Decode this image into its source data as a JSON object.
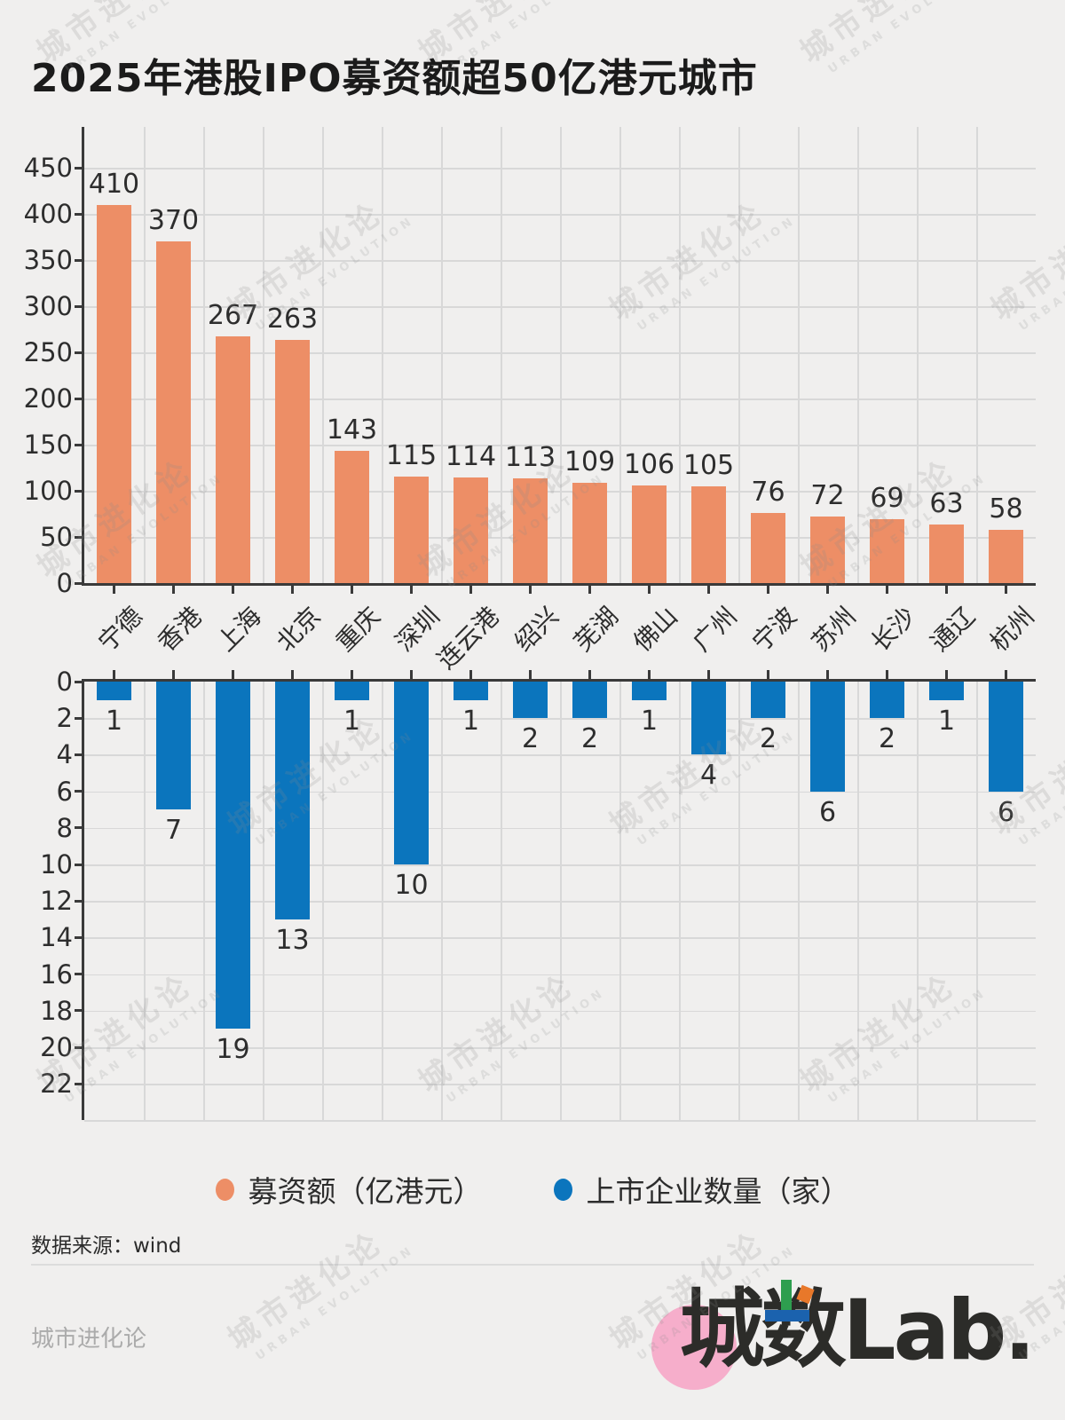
{
  "title": "2025年港股IPO募资额超50亿港元城市",
  "watermark": {
    "cn": "城市进化论",
    "en": "URBAN EVOLUTION"
  },
  "chart_data": [
    {
      "type": "bar",
      "title": "募资额（亿港元）",
      "categories": [
        "宁德",
        "香港",
        "上海",
        "北京",
        "重庆",
        "深圳",
        "连云港",
        "绍兴",
        "芜湖",
        "佛山",
        "广州",
        "宁波",
        "苏州",
        "长沙",
        "通辽",
        "杭州"
      ],
      "values": [
        410,
        370,
        267,
        263,
        143,
        115,
        114,
        113,
        109,
        106,
        105,
        76,
        72,
        69,
        63,
        58
      ],
      "xlabel": "",
      "ylabel": "",
      "ylim": [
        0,
        485
      ],
      "yticks": [
        0,
        50,
        100,
        150,
        200,
        250,
        300,
        350,
        400,
        450
      ],
      "grid": true,
      "value_labels": true,
      "bar_color": "#ED8E66",
      "legend_position": "bottom"
    },
    {
      "type": "bar",
      "title": "上市企业数量（家）",
      "categories": [
        "宁德",
        "香港",
        "上海",
        "北京",
        "重庆",
        "深圳",
        "连云港",
        "绍兴",
        "芜湖",
        "佛山",
        "广州",
        "宁波",
        "苏州",
        "长沙",
        "通辽",
        "杭州"
      ],
      "values": [
        1,
        7,
        19,
        13,
        1,
        10,
        1,
        2,
        2,
        1,
        4,
        2,
        6,
        2,
        1,
        6
      ],
      "xlabel": "",
      "ylabel": "",
      "ylim": [
        0,
        24
      ],
      "yticks": [
        0,
        2,
        4,
        6,
        8,
        10,
        12,
        14,
        16,
        18,
        20,
        22
      ],
      "grid": true,
      "value_labels": true,
      "inverted": true,
      "bar_color": "#0B75BD",
      "legend_position": "bottom"
    }
  ],
  "legend": [
    {
      "label": "募资额（亿港元）",
      "color": "#ED8E66"
    },
    {
      "label": "上市企业数量（家）",
      "color": "#0B75BD"
    }
  ],
  "source": "数据来源：wind",
  "footer": {
    "left": "城市进化论",
    "logo": {
      "text_cn": "城数",
      "text_latin": "Lab."
    }
  },
  "colors": {
    "background": "#F0EFEE",
    "grid": "#D8D8D8",
    "axis": "#3A3A3A",
    "text": "#2D2D2D",
    "muted": "#ABABAB",
    "orange": "#ED8E66",
    "blue": "#0B75BD",
    "logo_pink": "#F6AECB",
    "logo_dark": "#2C2C29",
    "logo_accent_green": "#2E9E4F",
    "logo_accent_blue": "#1B62AE",
    "logo_accent_orange": "#E8782A"
  }
}
